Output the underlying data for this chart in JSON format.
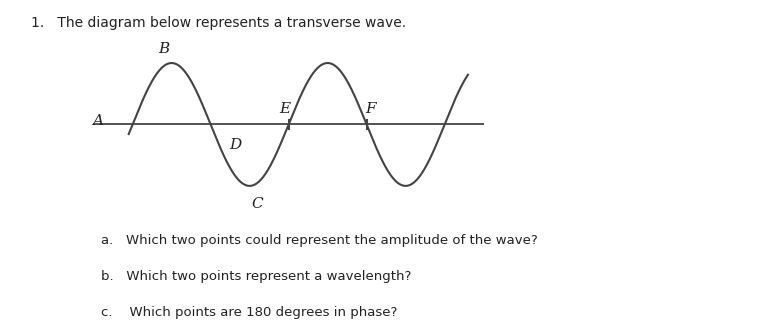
{
  "title_text": "1.   The diagram below represents a transverse wave.",
  "title_fontsize": 10,
  "bg_color": "#ffffff",
  "wave_color": "#444444",
  "text_color": "#222222",
  "questions": [
    "a.   Which two points could represent the amplitude of the wave?",
    "b.   Which two points represent a wavelength?",
    "c.    Which points are 180 degrees in phase?"
  ],
  "question_fontsize": 9.5
}
